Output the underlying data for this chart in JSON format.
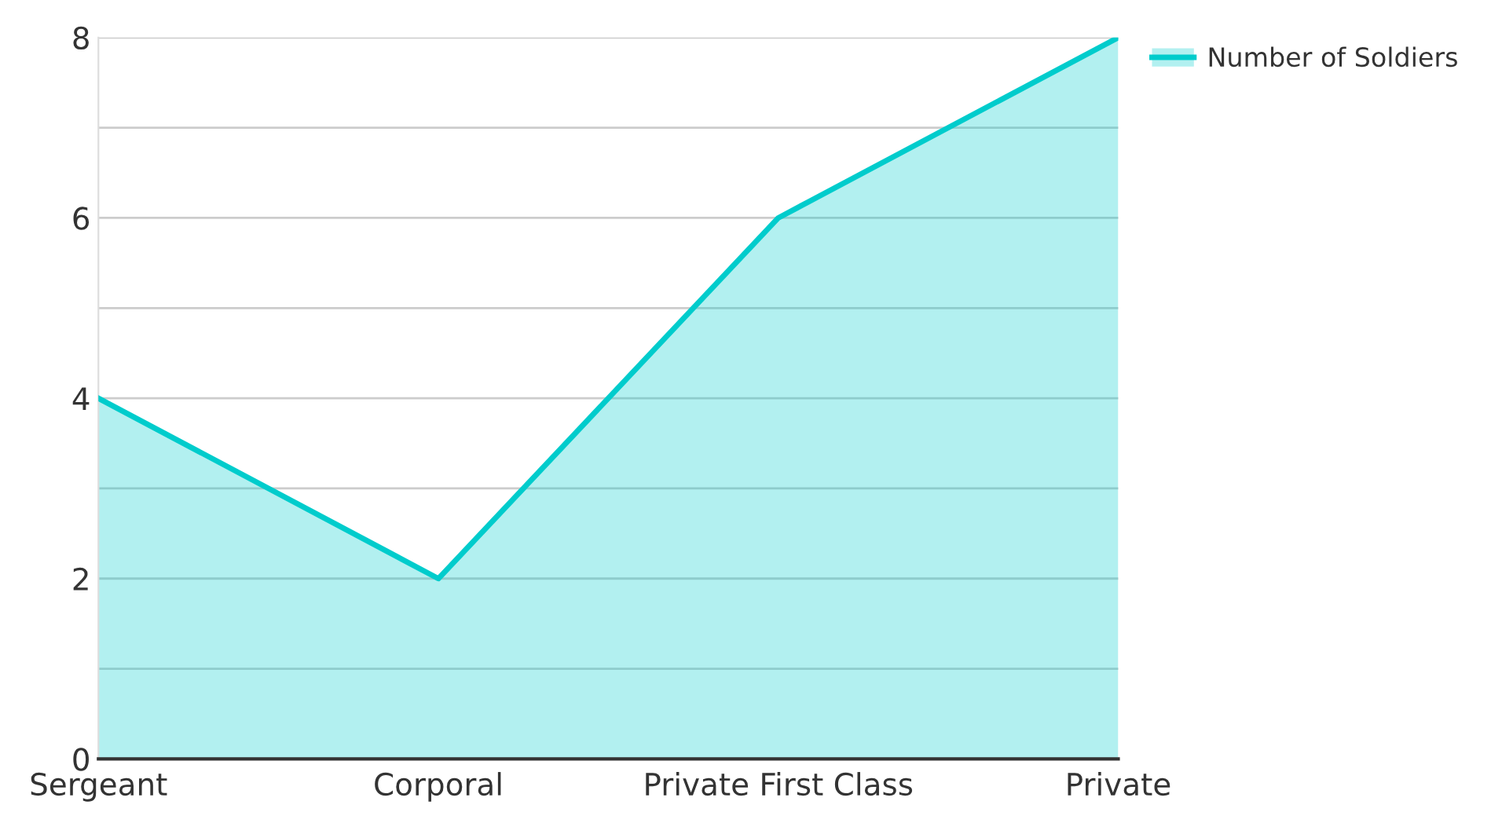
{
  "chart_data": {
    "type": "area",
    "categories": [
      "Sergeant",
      "Corporal",
      "Private First Class",
      "Private"
    ],
    "series": [
      {
        "name": "Number of Soldiers",
        "color": "#00cccc",
        "values": [
          4,
          2,
          6,
          8
        ]
      }
    ],
    "ylim": [
      0,
      8
    ],
    "yticks": [
      0,
      {
        "value": 1,
        "label": null
      },
      2,
      {
        "value": 3,
        "label": null
      },
      4,
      {
        "value": 5,
        "label": null
      },
      6,
      {
        "value": 7,
        "label": null
      },
      8
    ],
    "grid": "y",
    "legend": "top right"
  }
}
